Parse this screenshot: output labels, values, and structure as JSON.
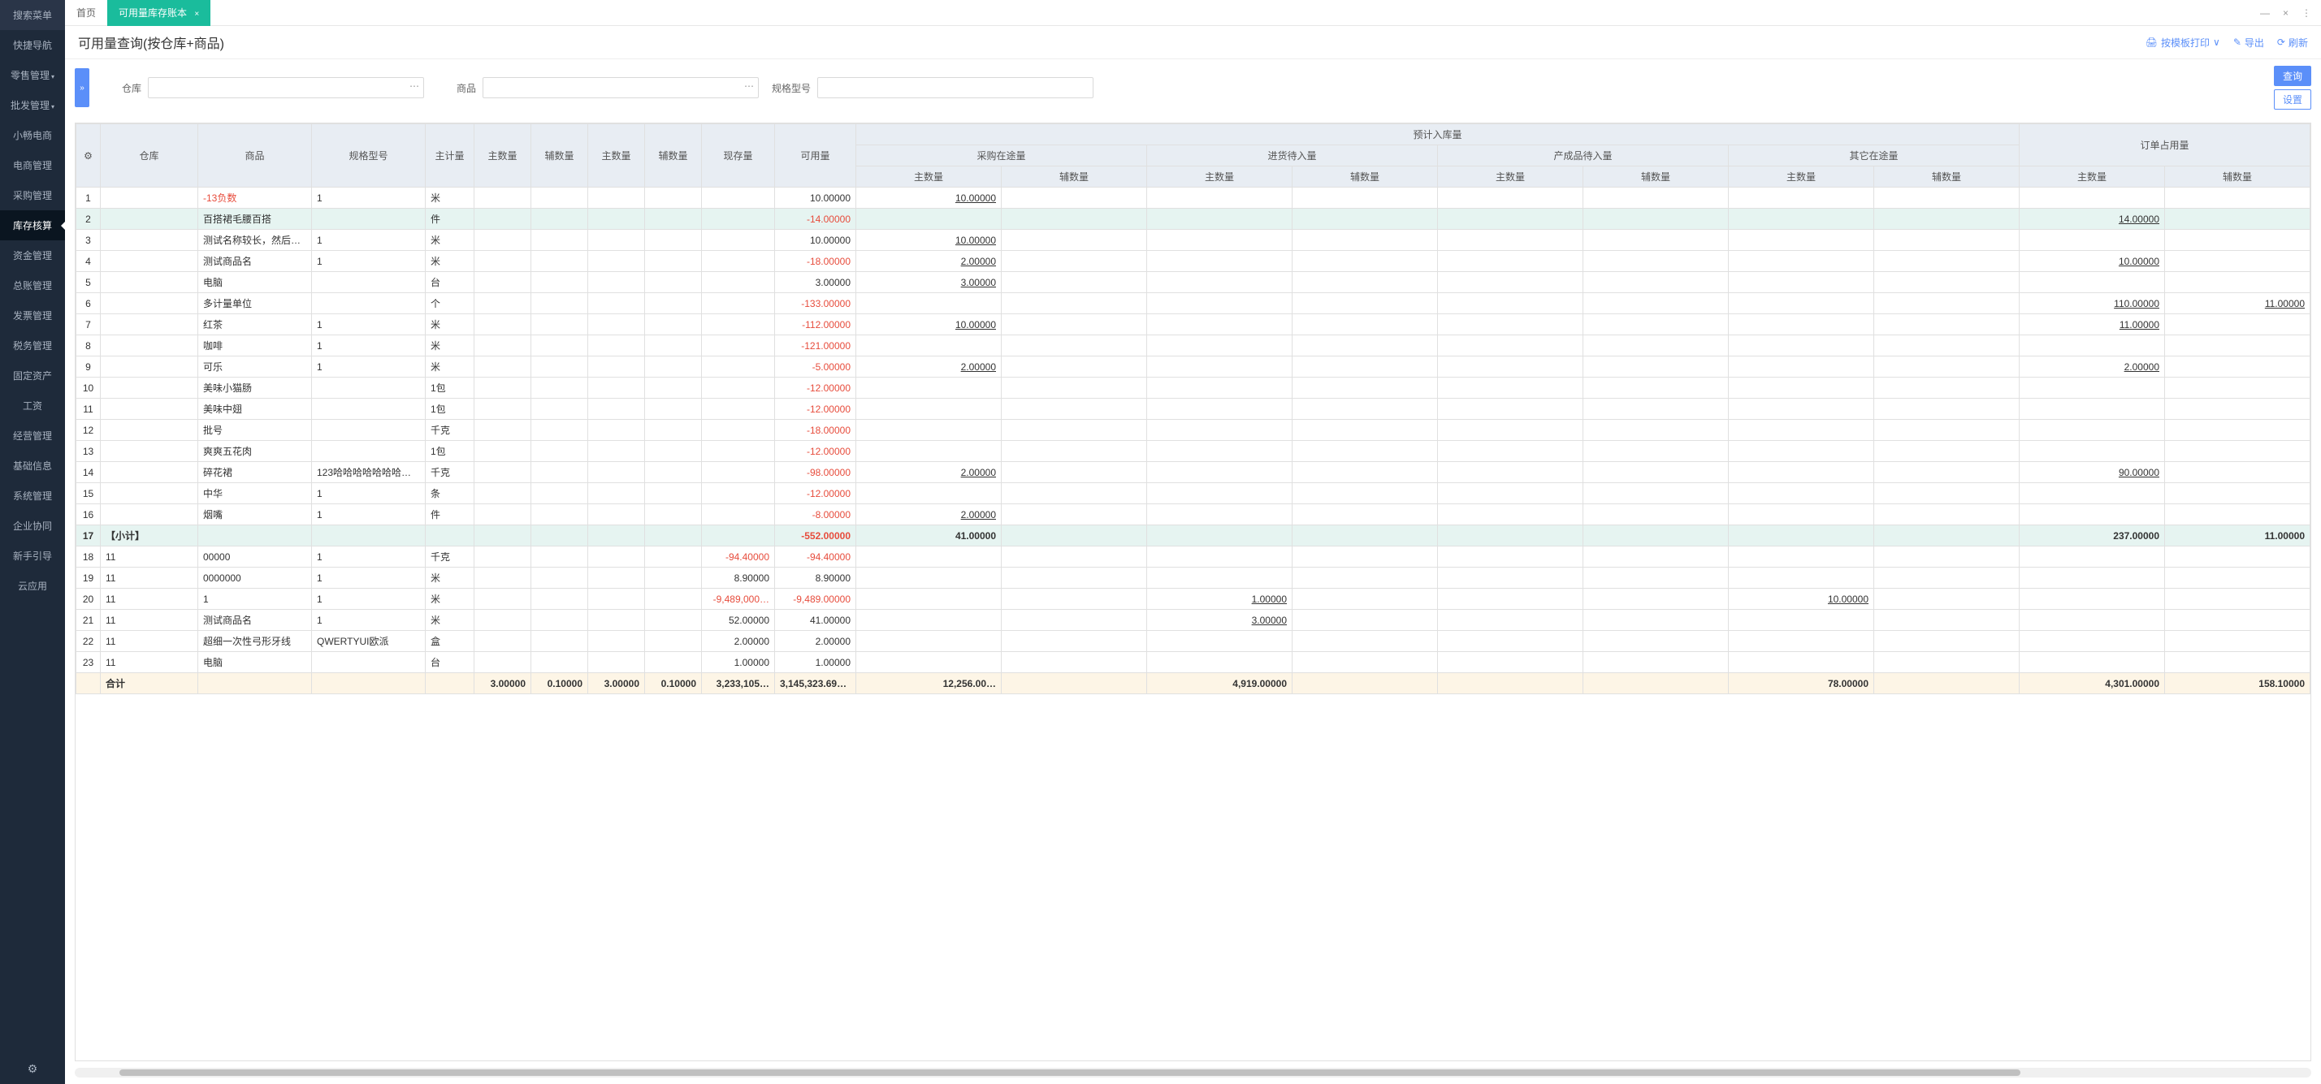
{
  "sidebar": {
    "items": [
      {
        "label": "搜索菜单",
        "arrow": false
      },
      {
        "label": "快捷导航",
        "arrow": false
      },
      {
        "label": "零售管理",
        "arrow": true
      },
      {
        "label": "批发管理",
        "arrow": true
      },
      {
        "label": "小畅电商",
        "arrow": false
      },
      {
        "label": "电商管理",
        "arrow": false
      },
      {
        "label": "采购管理",
        "arrow": false
      },
      {
        "label": "库存核算",
        "arrow": false,
        "active": true
      },
      {
        "label": "资金管理",
        "arrow": false
      },
      {
        "label": "总账管理",
        "arrow": false
      },
      {
        "label": "发票管理",
        "arrow": false
      },
      {
        "label": "税务管理",
        "arrow": false
      },
      {
        "label": "固定资产",
        "arrow": false
      },
      {
        "label": "工资",
        "arrow": false
      },
      {
        "label": "经营管理",
        "arrow": false
      },
      {
        "label": "基础信息",
        "arrow": false
      },
      {
        "label": "系统管理",
        "arrow": false
      },
      {
        "label": "企业协同",
        "arrow": false
      },
      {
        "label": "新手引导",
        "arrow": false
      },
      {
        "label": "云应用",
        "arrow": false
      }
    ]
  },
  "tabs": {
    "home": "首页",
    "active": "可用量库存账本",
    "close": "×"
  },
  "page": {
    "title": "可用量查询(按仓库+商品)",
    "actions": {
      "print": "按模板打印",
      "export": "导出",
      "refresh": "刷新"
    }
  },
  "filters": {
    "warehouse": {
      "label": "仓库",
      "placeholder": ""
    },
    "product": {
      "label": "商品",
      "placeholder": ""
    },
    "spec": {
      "label": "规格型号",
      "placeholder": ""
    },
    "query": "查询",
    "settings": "设置"
  },
  "table": {
    "header": {
      "gear": "⚙",
      "warehouse": "仓库",
      "product": "商品",
      "spec": "规格型号",
      "mainUnit": "主计量",
      "mainQty": "主数量",
      "auxQty": "辅数量",
      "mainQty2": "主数量",
      "auxQty2": "辅数量",
      "stock": "现存量",
      "available": "可用量",
      "expectedGroup": "预计入库量",
      "purchaseInTransit": "采购在途量",
      "goodsInTransit": "进货待入量",
      "finishedInTransit": "产成品待入量",
      "otherInTransit": "其它在途量",
      "orderOccupy": "订单占用量",
      "subMain": "主数量",
      "subAux": "辅数量"
    },
    "rows": [
      {
        "idx": "1",
        "wh": "",
        "prod": "-13负数",
        "prodNeg": true,
        "spec": "1",
        "unit": "米",
        "avail": "10.00000",
        "purch": "10.00000"
      },
      {
        "idx": "2",
        "wh": "",
        "prod": "百搭裙毛腰百搭",
        "spec": "",
        "unit": "件",
        "avail": "-14.00000",
        "availNeg": true,
        "order": "14.00000",
        "highlight": true
      },
      {
        "idx": "3",
        "wh": "",
        "prod": "测试名称较长，然后截断有没…",
        "spec": "1",
        "unit": "米",
        "avail": "10.00000",
        "purch": "10.00000"
      },
      {
        "idx": "4",
        "wh": "",
        "prod": "测试商品名",
        "spec": "1",
        "unit": "米",
        "avail": "-18.00000",
        "availNeg": true,
        "purch": "2.00000",
        "order": "10.00000"
      },
      {
        "idx": "5",
        "wh": "",
        "prod": "电脑",
        "spec": "",
        "unit": "台",
        "avail": "3.00000",
        "purch": "3.00000"
      },
      {
        "idx": "6",
        "wh": "",
        "prod": "多计量单位",
        "spec": "",
        "unit": "个",
        "avail": "-133.00000",
        "availNeg": true,
        "order": "110.00000",
        "orderAux": "11.00000"
      },
      {
        "idx": "7",
        "wh": "",
        "prod": "红茶",
        "spec": "1",
        "unit": "米",
        "avail": "-112.00000",
        "availNeg": true,
        "purch": "10.00000",
        "order": "11.00000"
      },
      {
        "idx": "8",
        "wh": "",
        "prod": "咖啡",
        "spec": "1",
        "unit": "米",
        "avail": "-121.00000",
        "availNeg": true
      },
      {
        "idx": "9",
        "wh": "",
        "prod": "可乐",
        "spec": "1",
        "unit": "米",
        "avail": "-5.00000",
        "availNeg": true,
        "purch": "2.00000",
        "order": "2.00000"
      },
      {
        "idx": "10",
        "wh": "",
        "prod": "美味小猫肠",
        "spec": "",
        "unit": "1包",
        "avail": "-12.00000",
        "availNeg": true
      },
      {
        "idx": "11",
        "wh": "",
        "prod": "美味中翅",
        "spec": "",
        "unit": "1包",
        "avail": "-12.00000",
        "availNeg": true
      },
      {
        "idx": "12",
        "wh": "",
        "prod": "批号",
        "spec": "",
        "unit": "千克",
        "avail": "-18.00000",
        "availNeg": true
      },
      {
        "idx": "13",
        "wh": "",
        "prod": "爽爽五花肉",
        "spec": "",
        "unit": "1包",
        "avail": "-12.00000",
        "availNeg": true
      },
      {
        "idx": "14",
        "wh": "",
        "prod": "碎花裙",
        "spec": "123哈哈哈哈哈哈哈哈哈哈哈哈…",
        "unit": "千克",
        "avail": "-98.00000",
        "availNeg": true,
        "purch": "2.00000",
        "order": "90.00000"
      },
      {
        "idx": "15",
        "wh": "",
        "prod": "中华",
        "spec": "1",
        "unit": "条",
        "avail": "-12.00000",
        "availNeg": true
      },
      {
        "idx": "16",
        "wh": "",
        "prod": "烟嘴",
        "spec": "1",
        "unit": "件",
        "avail": "-8.00000",
        "availNeg": true,
        "purch": "2.00000"
      },
      {
        "idx": "17",
        "wh": "【小计】",
        "subtotal": true,
        "avail": "-552.00000",
        "availNeg": true,
        "purch": "41.00000",
        "order": "237.00000",
        "orderAux": "11.00000"
      },
      {
        "idx": "18",
        "wh": "11",
        "prod": "00000",
        "spec": "1",
        "unit": "千克",
        "stock": "-94.40000",
        "stockNeg": true,
        "avail": "-94.40000",
        "availNeg": true
      },
      {
        "idx": "19",
        "wh": "11",
        "prod": "0000000",
        "spec": "1",
        "unit": "米",
        "stock": "8.90000",
        "avail": "8.90000"
      },
      {
        "idx": "20",
        "wh": "11",
        "prod": "1",
        "spec": "1",
        "unit": "米",
        "stock": "-9,489,000…",
        "stockNeg": true,
        "avail": "-9,489.00000",
        "availNeg": true,
        "goods": "1.00000",
        "other": "10.00000"
      },
      {
        "idx": "21",
        "wh": "11",
        "prod": "测试商品名",
        "spec": "1",
        "unit": "米",
        "stock": "52.00000",
        "avail": "41.00000",
        "goods": "3.00000"
      },
      {
        "idx": "22",
        "wh": "11",
        "prod": "超细一次性弓形牙线",
        "spec": "QWERTYUI欧派",
        "unit": "盒",
        "stock": "2.00000",
        "avail": "2.00000"
      },
      {
        "idx": "23",
        "wh": "11",
        "prod": "电脑",
        "spec": "",
        "unit": "台",
        "stock": "1.00000",
        "avail": "1.00000"
      }
    ],
    "footer": {
      "label": "合计",
      "mainQty": "3.00000",
      "auxQty": "0.10000",
      "mainQty2": "3.00000",
      "auxQty2": "0.10000",
      "stock": "3,233,105…",
      "avail": "3,145,323.69900",
      "purch": "12,256.00…",
      "goods": "4,919.00000",
      "other": "78.00000",
      "order": "4,301.00000",
      "orderAux": "158.10000"
    }
  }
}
